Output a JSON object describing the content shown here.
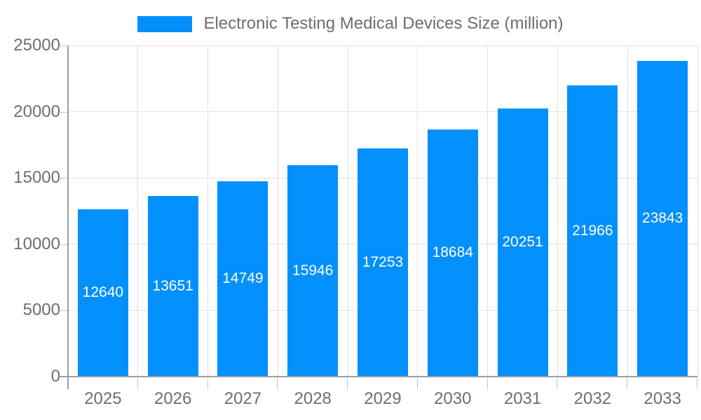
{
  "legend": {
    "label": "Electronic Testing Medical Devices Size (million)"
  },
  "chart_data": {
    "type": "bar",
    "title": "Electronic Testing Medical Devices Size (million)",
    "categories": [
      "2025",
      "2026",
      "2027",
      "2028",
      "2029",
      "2030",
      "2031",
      "2032",
      "2033"
    ],
    "values": [
      12640,
      13651,
      14749,
      15946,
      17253,
      18684,
      20251,
      21966,
      23843
    ],
    "xlabel": "",
    "ylabel": "",
    "ylim": [
      0,
      25000
    ],
    "yticks": [
      0,
      5000,
      10000,
      15000,
      20000,
      25000
    ],
    "grid": true,
    "legend_position": "top",
    "value_labels": "inside-center"
  },
  "colors": {
    "bar": "#0390fb",
    "grid": "#e2e2e2",
    "axis": "#9e9e9e",
    "tick": "#c4c4c4",
    "text": "#6e6e6e",
    "value_label": "#ffffff",
    "background": "#ffffff"
  }
}
